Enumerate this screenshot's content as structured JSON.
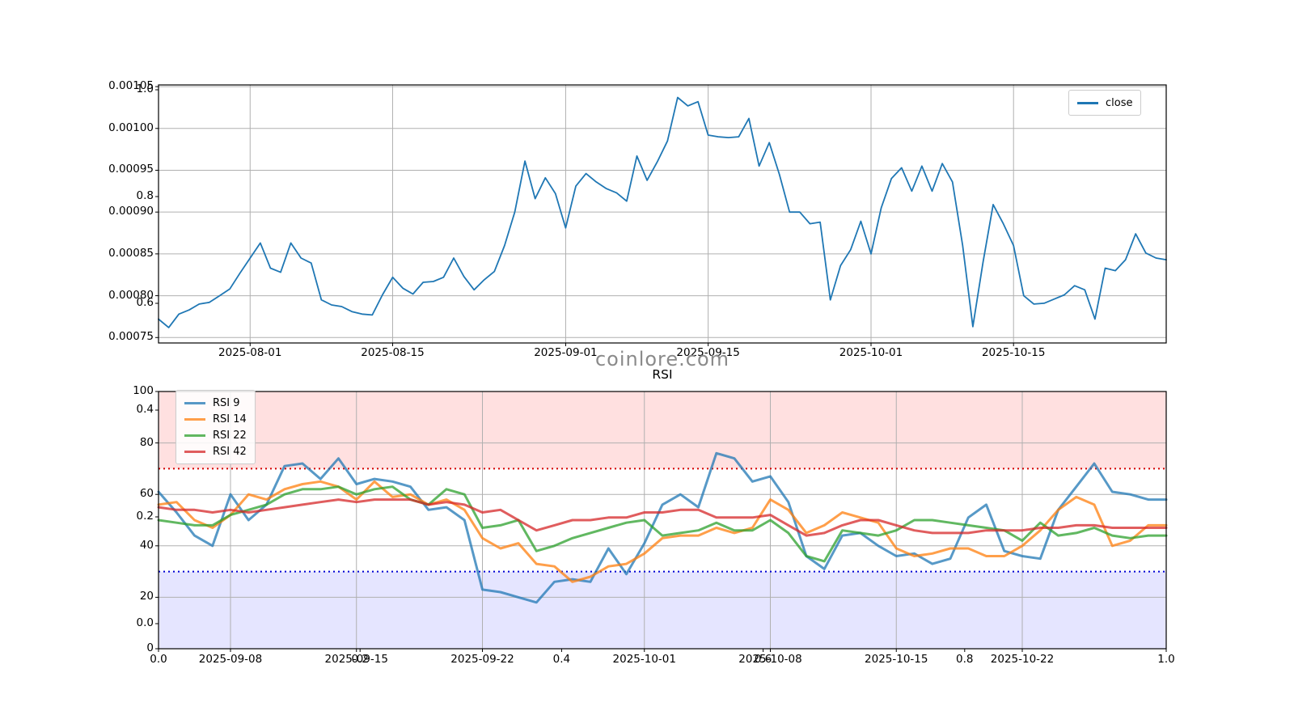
{
  "watermark": "coinlore.com",
  "overlay_axis": {
    "x_ticks": [
      {
        "value": 0.0,
        "label": "0.0"
      },
      {
        "value": 0.2,
        "label": "0.2"
      },
      {
        "value": 0.4,
        "label": "0.4"
      },
      {
        "value": 0.6,
        "label": "0.6"
      },
      {
        "value": 0.8,
        "label": "0.8"
      },
      {
        "value": 1.0,
        "label": "1.0"
      }
    ],
    "y_ticks": [
      {
        "value": 0.0,
        "label": "0.0"
      },
      {
        "value": 0.2,
        "label": "0.2"
      },
      {
        "value": 0.4,
        "label": "0.4"
      },
      {
        "value": 0.6,
        "label": "0.6"
      },
      {
        "value": 0.8,
        "label": "0.8"
      },
      {
        "value": 1.0,
        "label": "1.0"
      }
    ]
  },
  "chart_data": [
    {
      "type": "line",
      "title": "",
      "legend_position": "upper right",
      "grid": true,
      "ylim": [
        0.0007435,
        0.001052
      ],
      "y_ticks": [
        {
          "value": 0.00075,
          "label": "0.00075"
        },
        {
          "value": 0.0008,
          "label": "0.00080"
        },
        {
          "value": 0.00085,
          "label": "0.00085"
        },
        {
          "value": 0.0009,
          "label": "0.00090"
        },
        {
          "value": 0.00095,
          "label": "0.00095"
        },
        {
          "value": 0.001,
          "label": "0.00100"
        },
        {
          "value": 0.00105,
          "label": "0.00105"
        }
      ],
      "x_ticks": [
        {
          "index": 9,
          "label": "2025-08-01"
        },
        {
          "index": 23,
          "label": "2025-08-15"
        },
        {
          "index": 40,
          "label": "2025-09-01"
        },
        {
          "index": 54,
          "label": "2025-09-15"
        },
        {
          "index": 70,
          "label": "2025-10-01"
        },
        {
          "index": 84,
          "label": "2025-10-15"
        }
      ],
      "dates": [
        "2025-07-23",
        "2025-07-24",
        "2025-07-25",
        "2025-07-26",
        "2025-07-27",
        "2025-07-28",
        "2025-07-29",
        "2025-07-30",
        "2025-07-31",
        "2025-08-01",
        "2025-08-02",
        "2025-08-03",
        "2025-08-04",
        "2025-08-05",
        "2025-08-06",
        "2025-08-07",
        "2025-08-08",
        "2025-08-09",
        "2025-08-10",
        "2025-08-11",
        "2025-08-12",
        "2025-08-13",
        "2025-08-14",
        "2025-08-15",
        "2025-08-16",
        "2025-08-17",
        "2025-08-18",
        "2025-08-19",
        "2025-08-20",
        "2025-08-21",
        "2025-08-22",
        "2025-08-23",
        "2025-08-24",
        "2025-08-25",
        "2025-08-26",
        "2025-08-27",
        "2025-08-28",
        "2025-08-29",
        "2025-08-30",
        "2025-08-31",
        "2025-09-01",
        "2025-09-02",
        "2025-09-03",
        "2025-09-04",
        "2025-09-05",
        "2025-09-06",
        "2025-09-07",
        "2025-09-08",
        "2025-09-09",
        "2025-09-10",
        "2025-09-11",
        "2025-09-12",
        "2025-09-13",
        "2025-09-14",
        "2025-09-15",
        "2025-09-16",
        "2025-09-17",
        "2025-09-18",
        "2025-09-19",
        "2025-09-20",
        "2025-09-21",
        "2025-09-22",
        "2025-09-23",
        "2025-09-24",
        "2025-09-25",
        "2025-09-26",
        "2025-09-27",
        "2025-09-28",
        "2025-09-29",
        "2025-09-30",
        "2025-10-01",
        "2025-10-02",
        "2025-10-03",
        "2025-10-04",
        "2025-10-05",
        "2025-10-06",
        "2025-10-07",
        "2025-10-08",
        "2025-10-09",
        "2025-10-10",
        "2025-10-11",
        "2025-10-12",
        "2025-10-13",
        "2025-10-14",
        "2025-10-15",
        "2025-10-16",
        "2025-10-17",
        "2025-10-18",
        "2025-10-19",
        "2025-10-20",
        "2025-10-21",
        "2025-10-22",
        "2025-10-23",
        "2025-10-24",
        "2025-10-25",
        "2025-10-26",
        "2025-10-27",
        "2025-10-28",
        "2025-10-29",
        "2025-10-30"
      ],
      "series": [
        {
          "name": "close",
          "color": "#1f77b4",
          "alpha": 1,
          "width": 1.8,
          "values": [
            0.000772,
            0.000762,
            0.000778,
            0.000783,
            0.00079,
            0.000792,
            0.0008,
            0.000808,
            0.000827,
            0.000845,
            0.000863,
            0.000833,
            0.000828,
            0.000863,
            0.000845,
            0.000839,
            0.000795,
            0.000789,
            0.000787,
            0.000781,
            0.000778,
            0.000777,
            0.000801,
            0.000822,
            0.000809,
            0.000802,
            0.000816,
            0.000817,
            0.000822,
            0.000845,
            0.000823,
            0.000807,
            0.000819,
            0.000829,
            0.00086,
            0.0009,
            0.000961,
            0.000916,
            0.000941,
            0.000922,
            0.000881,
            0.000931,
            0.000946,
            0.000936,
            0.000928,
            0.000923,
            0.000913,
            0.000967,
            0.000938,
            0.00096,
            0.000985,
            0.001037,
            0.001027,
            0.001032,
            0.000992,
            0.00099,
            0.000989,
            0.00099,
            0.001012,
            0.000955,
            0.000983,
            0.000945,
            0.0009,
            0.0009,
            0.000886,
            0.000888,
            0.000795,
            0.000836,
            0.000855,
            0.000889,
            0.00085,
            0.000905,
            0.00094,
            0.000953,
            0.000925,
            0.000955,
            0.000925,
            0.000958,
            0.000936,
            0.00086,
            0.000763,
            0.00084,
            0.000909,
            0.000886,
            0.00086,
            0.0008,
            0.00079,
            0.000791,
            0.000796,
            0.000801,
            0.000812,
            0.000807,
            0.000772,
            0.000833,
            0.00083,
            0.000843,
            0.000874,
            0.000851,
            0.000845,
            0.000843
          ]
        }
      ]
    },
    {
      "type": "line",
      "title": "RSI",
      "legend_position": "upper left",
      "grid": true,
      "ylim": [
        0,
        100
      ],
      "bands": [
        {
          "from": 70,
          "to": 100,
          "color": "rgba(255,0,0,0.12)"
        },
        {
          "from": 0,
          "to": 30,
          "color": "rgba(0,0,255,0.10)"
        }
      ],
      "threshold_lines": [
        {
          "value": 70,
          "color": "#d40000",
          "style": "dotted"
        },
        {
          "value": 30,
          "color": "#0000d4",
          "style": "dotted"
        }
      ],
      "y_ticks": [
        {
          "value": 0,
          "label": "0"
        },
        {
          "value": 20,
          "label": "20"
        },
        {
          "value": 40,
          "label": "40"
        },
        {
          "value": 60,
          "label": "60"
        },
        {
          "value": 80,
          "label": "80"
        },
        {
          "value": 100,
          "label": "100"
        }
      ],
      "x_ticks": [
        {
          "index": 4,
          "label": "2025-09-08"
        },
        {
          "index": 11,
          "label": "2025-09-15"
        },
        {
          "index": 18,
          "label": "2025-09-22"
        },
        {
          "index": 27,
          "label": "2025-10-01"
        },
        {
          "index": 34,
          "label": "2025-10-08"
        },
        {
          "index": 41,
          "label": "2025-10-15"
        },
        {
          "index": 48,
          "label": "2025-10-22"
        }
      ],
      "dates": [
        "2025-09-04",
        "2025-09-05",
        "2025-09-06",
        "2025-09-07",
        "2025-09-08",
        "2025-09-09",
        "2025-09-10",
        "2025-09-11",
        "2025-09-12",
        "2025-09-13",
        "2025-09-14",
        "2025-09-15",
        "2025-09-16",
        "2025-09-17",
        "2025-09-18",
        "2025-09-19",
        "2025-09-20",
        "2025-09-21",
        "2025-09-22",
        "2025-09-23",
        "2025-09-24",
        "2025-09-25",
        "2025-09-26",
        "2025-09-27",
        "2025-09-28",
        "2025-09-29",
        "2025-09-30",
        "2025-10-01",
        "2025-10-02",
        "2025-10-03",
        "2025-10-04",
        "2025-10-05",
        "2025-10-06",
        "2025-10-07",
        "2025-10-08",
        "2025-10-09",
        "2025-10-10",
        "2025-10-11",
        "2025-10-12",
        "2025-10-13",
        "2025-10-14",
        "2025-10-15",
        "2025-10-16",
        "2025-10-17",
        "2025-10-18",
        "2025-10-19",
        "2025-10-20",
        "2025-10-21",
        "2025-10-22",
        "2025-10-23",
        "2025-10-24",
        "2025-10-25",
        "2025-10-26",
        "2025-10-27",
        "2025-10-28",
        "2025-10-29",
        "2025-10-30"
      ],
      "series": [
        {
          "name": "RSI 9",
          "color": "#1f77b4",
          "alpha": 0.75,
          "width": 3,
          "values": [
            61,
            53,
            44,
            40,
            60,
            50,
            56,
            71,
            72,
            66,
            74,
            64,
            66,
            65,
            63,
            54,
            55,
            50,
            23,
            22,
            20,
            18,
            26,
            27,
            26,
            39,
            29,
            41,
            56,
            60,
            55,
            76,
            74,
            65,
            67,
            57,
            36,
            31,
            44,
            45,
            40,
            36,
            37,
            33,
            35,
            51,
            56,
            38,
            36,
            35,
            54,
            63,
            72,
            61,
            60,
            58,
            58
          ]
        },
        {
          "name": "RSI 14",
          "color": "#ff7f0e",
          "alpha": 0.75,
          "width": 3,
          "values": [
            56,
            57,
            50,
            47,
            52,
            60,
            58,
            62,
            64,
            65,
            63,
            58,
            65,
            59,
            60,
            56,
            58,
            54,
            43,
            39,
            41,
            33,
            32,
            26,
            28,
            32,
            33,
            37,
            43,
            44,
            44,
            47,
            45,
            47,
            58,
            54,
            45,
            48,
            53,
            51,
            49,
            39,
            36,
            37,
            39,
            39,
            36,
            36,
            40,
            46,
            54,
            59,
            56,
            40,
            42,
            48,
            48
          ]
        },
        {
          "name": "RSI 22",
          "color": "#2ca02c",
          "alpha": 0.75,
          "width": 3,
          "values": [
            50,
            49,
            48,
            48,
            52,
            54,
            56,
            60,
            62,
            62,
            63,
            60,
            62,
            63,
            58,
            56,
            62,
            60,
            47,
            48,
            50,
            38,
            40,
            43,
            45,
            47,
            49,
            50,
            44,
            45,
            46,
            49,
            46,
            46,
            50,
            45,
            36,
            34,
            46,
            45,
            44,
            46,
            50,
            50,
            49,
            48,
            47,
            46,
            42,
            49,
            44,
            45,
            47,
            44,
            43,
            44,
            44
          ]
        },
        {
          "name": "RSI 42",
          "color": "#d62728",
          "alpha": 0.75,
          "width": 3,
          "values": [
            55,
            54,
            54,
            53,
            54,
            53,
            54,
            55,
            56,
            57,
            58,
            57,
            58,
            58,
            58,
            56,
            57,
            56,
            53,
            54,
            50,
            46,
            48,
            50,
            50,
            51,
            51,
            53,
            53,
            54,
            54,
            51,
            51,
            51,
            52,
            48,
            44,
            45,
            48,
            50,
            50,
            48,
            46,
            45,
            45,
            45,
            46,
            46,
            46,
            47,
            47,
            48,
            48,
            47,
            47,
            47,
            47
          ]
        }
      ]
    }
  ]
}
